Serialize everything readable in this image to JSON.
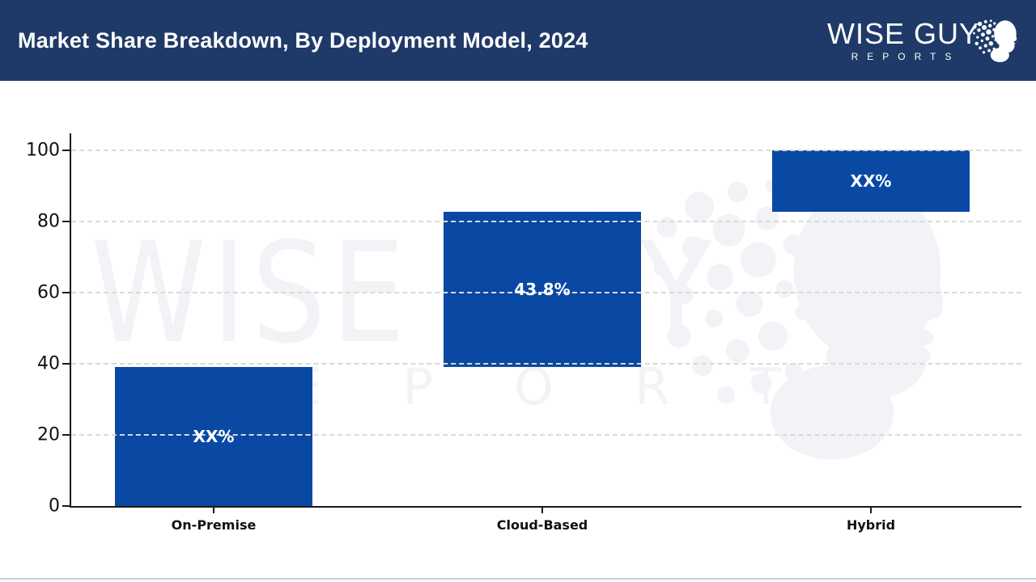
{
  "header": {
    "title": "Market Share Breakdown, By Deployment Model, 2024",
    "logo": {
      "wordmark": "WISE GUY",
      "subtext": "REPORTS"
    }
  },
  "watermark": {
    "wordmark": "WISE GUY",
    "subtext": "REPORTS"
  },
  "colors": {
    "header_bg": "#1f3a68",
    "bar": "#0a49a3",
    "bar_label_text": "#ffffff",
    "gridline": "#d9d9d9",
    "axis": "#1a1a1a",
    "watermark": "#f2f3f6"
  },
  "chart_data": {
    "type": "bar",
    "subtype": "waterfall",
    "title": "Market Share Breakdown, By Deployment Model, 2024",
    "categories": [
      "On-Premise",
      "Cloud-Based",
      "Hybrid"
    ],
    "segments": [
      {
        "category": "On-Premise",
        "start": 0,
        "end": 39,
        "size": 39,
        "label": "XX%"
      },
      {
        "category": "Cloud-Based",
        "start": 39,
        "end": 82.8,
        "size": 43.8,
        "label": "43.8%"
      },
      {
        "category": "Hybrid",
        "start": 82.8,
        "end": 100,
        "size": 17.2,
        "label": "XX%"
      }
    ],
    "yticks": [
      0,
      20,
      40,
      60,
      80,
      100
    ],
    "ylim": [
      0,
      100
    ],
    "xlabel": "",
    "ylabel": "",
    "grid": "horizontal-dashed",
    "legend": "none"
  }
}
